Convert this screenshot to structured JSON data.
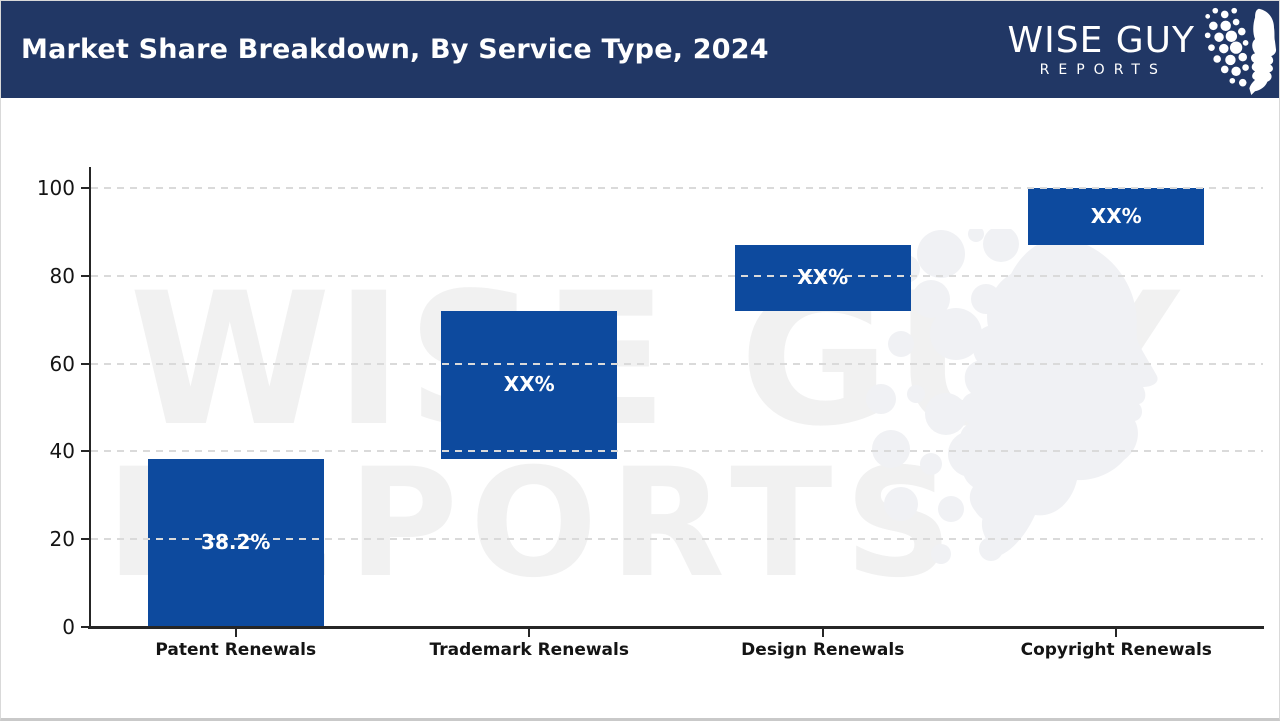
{
  "header": {
    "title": "Market Share Breakdown, By Service Type, 2024",
    "logo": {
      "primary": "WISE GUY",
      "secondary": "REPORTS"
    }
  },
  "watermark": {
    "primary": "WISE GUY",
    "secondary": "REPORTS"
  },
  "chart_data": {
    "type": "bar",
    "subtype": "waterfall",
    "title": "Market Share Breakdown, By Service Type, 2024",
    "categories": [
      "Patent Renewals",
      "Trademark Renewals",
      "Design Renewals",
      "Copyright Renewals"
    ],
    "segments": [
      {
        "category": "Patent Renewals",
        "start": 0,
        "end": 38.2,
        "label": "38.2%"
      },
      {
        "category": "Trademark Renewals",
        "start": 38.2,
        "end": 72,
        "label": "XX%"
      },
      {
        "category": "Design Renewals",
        "start": 72,
        "end": 87,
        "label": "XX%"
      },
      {
        "category": "Copyright Renewals",
        "start": 87,
        "end": 100,
        "label": "XX%"
      }
    ],
    "ylabel": "",
    "xlabel": "",
    "ylim": [
      0,
      100
    ],
    "yticks": [
      0,
      20,
      40,
      60,
      80,
      100
    ],
    "grid": "horizontal-dashed",
    "legend": "none",
    "colors": {
      "bar": "#0D4A9E",
      "bar_label": "#FFFFFF",
      "header_bg": "#213765",
      "header_text": "#FFFFFF",
      "grid": "#DADADA",
      "axis": "#262626",
      "watermark": "#F1F1F1"
    }
  }
}
